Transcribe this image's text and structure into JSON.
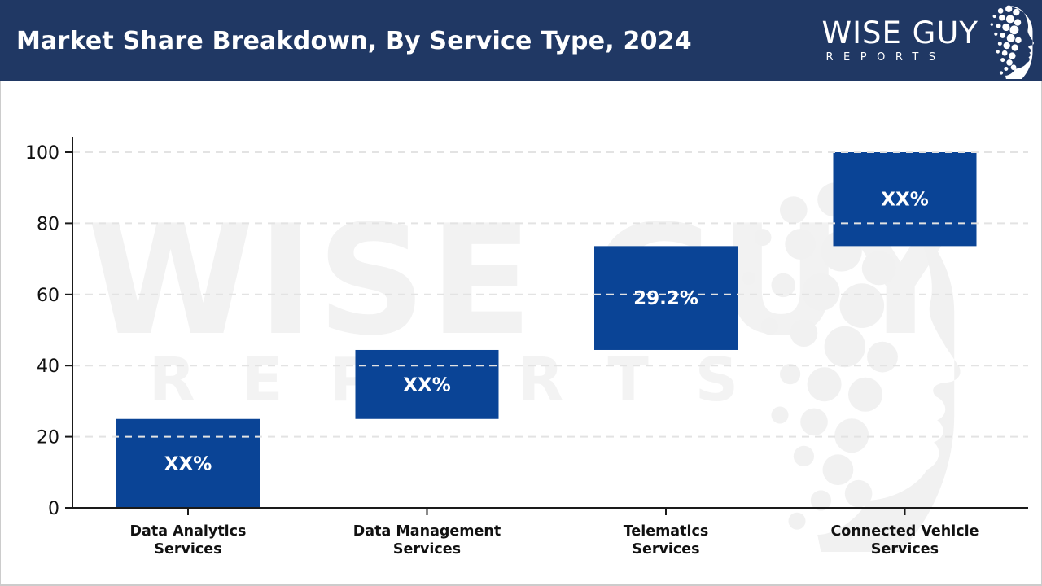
{
  "header": {
    "title": "Market Share Breakdown, By Service Type, 2024"
  },
  "logo": {
    "name": "WISE GUY",
    "subtitle": "REPORTS"
  },
  "watermark": {
    "line1": "WISE GUY",
    "line2": "REPORTS"
  },
  "colors": {
    "header_background": "#203864",
    "bar_fill": "#0a4496",
    "bar_label_text": "#ffffff",
    "axis_line": "#1a1a1a",
    "tick_label_text": "#111111",
    "category_label_text": "#111111",
    "gridline": "#e3e3e3",
    "watermark_gray": "#f2f2f2",
    "page_background": "#ffffff"
  },
  "chart_data": {
    "type": "bar",
    "variant": "floating-waterfall",
    "title": "Market Share Breakdown, By Service Type, 2024",
    "xlabel": "",
    "ylabel": "",
    "ylim": [
      0,
      100
    ],
    "yticks": [
      0,
      20,
      40,
      60,
      80,
      100
    ],
    "grid": "horizontal dashed, drawn above bars",
    "legend": "none",
    "categories": [
      "Data Analytics Services",
      "Data Management Services",
      "Telematics Services",
      "Connected Vehicle Services"
    ],
    "bars": [
      {
        "category_lines": [
          "Data Analytics",
          "Services"
        ],
        "start": 0,
        "end": 25,
        "segment_size": 25.0,
        "label": "XX%"
      },
      {
        "category_lines": [
          "Data Management",
          "Services"
        ],
        "start": 25,
        "end": 44.4,
        "segment_size": 19.4,
        "label": "XX%"
      },
      {
        "category_lines": [
          "Telematics",
          "Services"
        ],
        "start": 44.4,
        "end": 73.6,
        "segment_size": 29.2,
        "label": "29.2%"
      },
      {
        "category_lines": [
          "Connected Vehicle",
          "Services"
        ],
        "start": 73.6,
        "end": 100,
        "segment_size": 26.4,
        "label": "XX%"
      }
    ]
  }
}
